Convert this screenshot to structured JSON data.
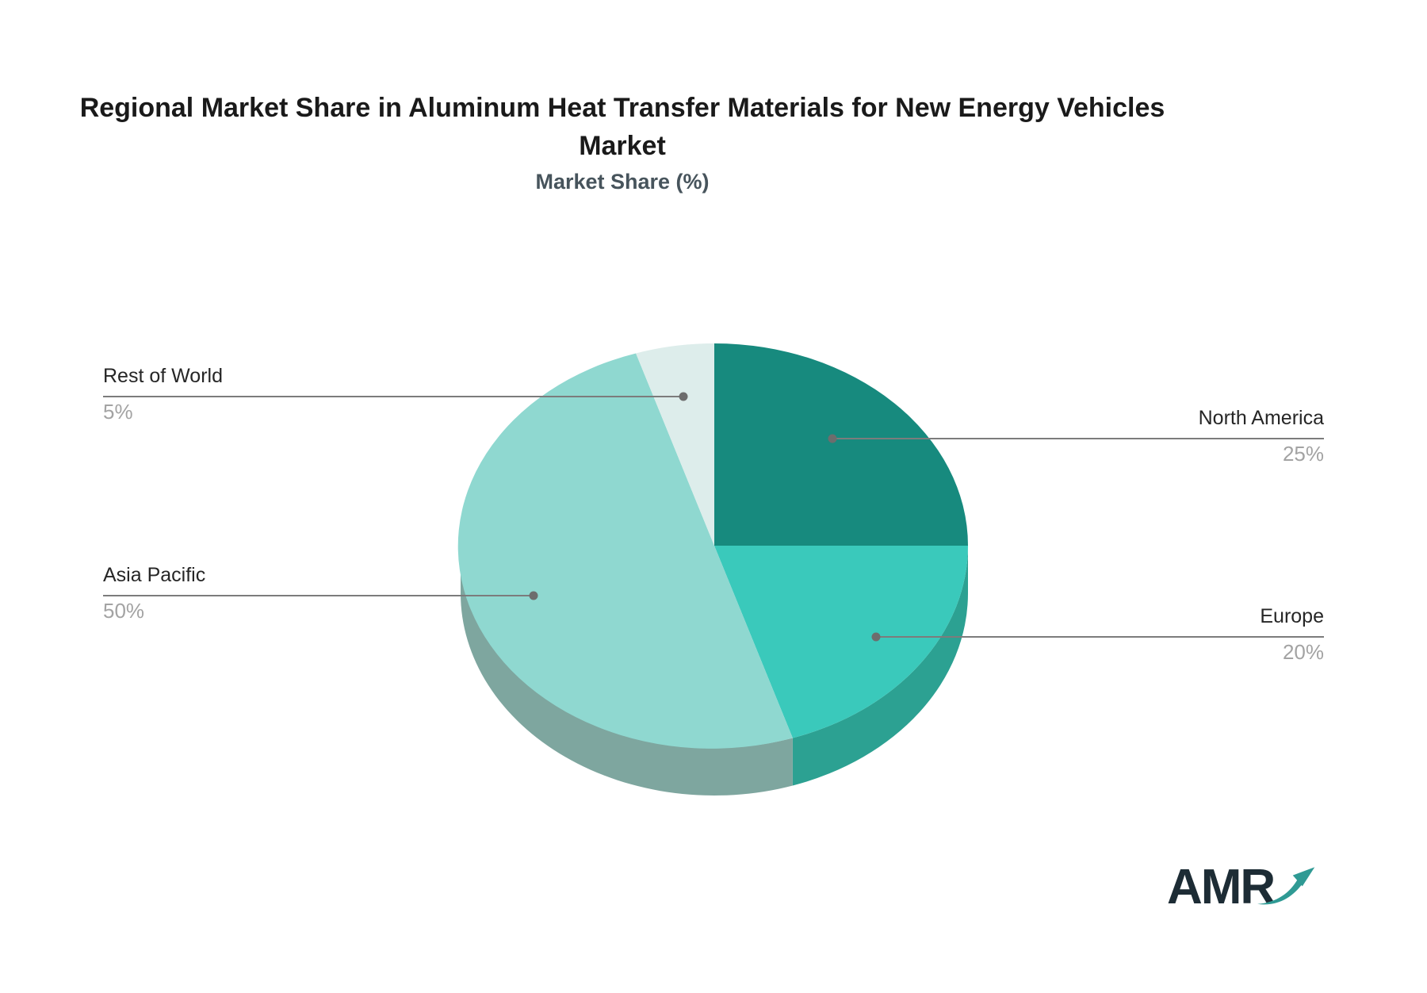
{
  "header": {
    "title_line1": "Regional Market Share in Aluminum Heat Transfer Materials for New Energy Vehicles",
    "title_line2": "Market",
    "subtitle": "Market Share (%)"
  },
  "chart_data": {
    "type": "pie",
    "style": "3d",
    "title": "Regional Market Share in Aluminum Heat Transfer Materials for New Energy Vehicles Market",
    "subtitle": "Market Share (%)",
    "unit": "%",
    "direction": "clockwise",
    "start_angle_deg": 0,
    "legend": "none",
    "slices": [
      {
        "label": "North America",
        "value": 25,
        "pct_label": "25%",
        "color": "#178a7e",
        "side_color": "#117c71"
      },
      {
        "label": "Europe",
        "value": 20,
        "pct_label": "20%",
        "color": "#3ac9bb",
        "side_color": "#2ca192"
      },
      {
        "label": "Asia Pacific",
        "value": 50,
        "pct_label": "50%",
        "color": "#8fd8d0",
        "side_color": "#7ea69f"
      },
      {
        "label": "Rest of World",
        "value": 5,
        "pct_label": "5%",
        "color": "#ddedeb",
        "side_color": "#c9dcd8"
      }
    ],
    "callout_line_color": "#7c7c7c",
    "callout_dot_color": "#6d6d6d",
    "label_color": "#262626",
    "pct_color": "#a3a3a3"
  },
  "logo": {
    "text": "AMR",
    "text_color": "#1d2c35",
    "arrow_color": "#2f9a94"
  }
}
